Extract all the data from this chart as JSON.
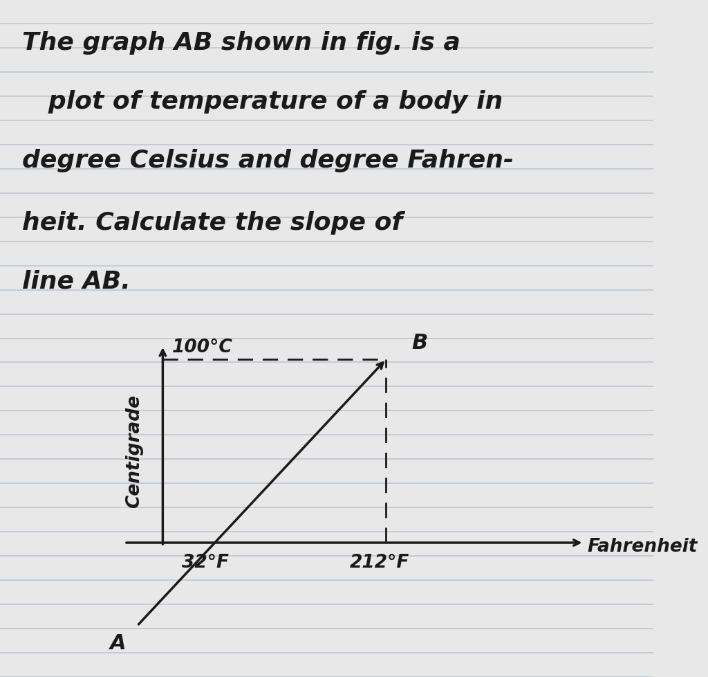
{
  "background_color": "#e8e8e8",
  "line_color": "#b8c8d8",
  "text_color": "#1a1a1a",
  "text_lines": [
    "The graph AB shown in fig. is a",
    "   plot of temperature of a body in",
    "degree Celsius and degree Fahren-",
    "heit. Calculate the slope of",
    "line AB."
  ],
  "label_100C": "100°C",
  "label_32F": "32°F",
  "label_212F": "212°F",
  "xlabel": "Fahrenheit",
  "ylabel": "Centigrade",
  "point_A": "A",
  "point_B": "B",
  "num_ruled_lines": 28,
  "font_size_text": 26,
  "font_size_graph": 19
}
